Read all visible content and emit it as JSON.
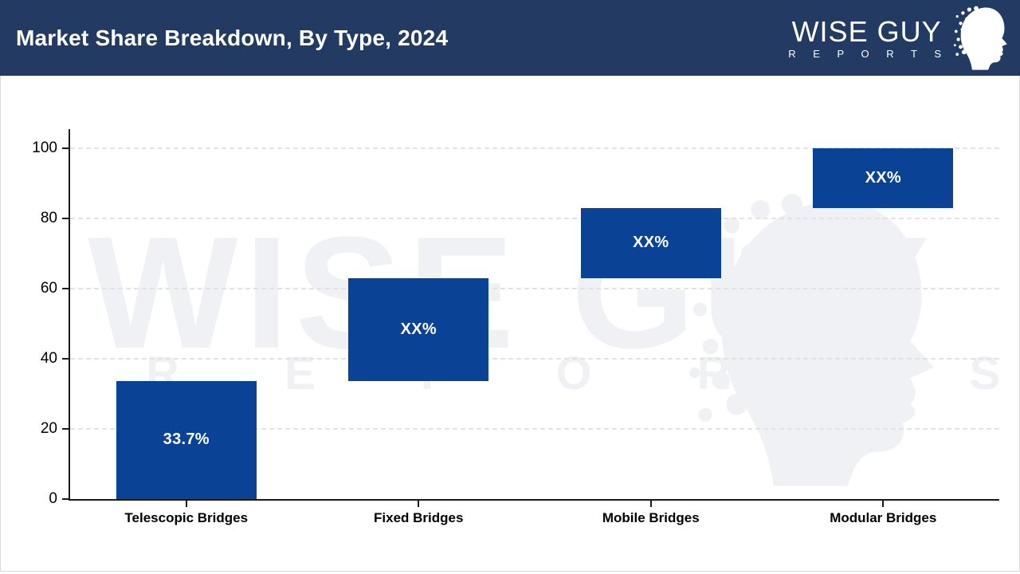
{
  "header": {
    "title": "Market Share Breakdown, By Type, 2024",
    "logo": {
      "line1": "WISE GUY",
      "line2": "R E P O R T S"
    }
  },
  "watermark": {
    "line1": "WISE GUY",
    "line2": "R E P O R T S"
  },
  "chart_data": {
    "type": "bar",
    "subtype": "waterfall",
    "title": "Market Share Breakdown, By Type, 2024",
    "categories": [
      "Telescopic Bridges",
      "Fixed Bridges",
      "Mobile Bridges",
      "Modular Bridges"
    ],
    "series": [
      {
        "name": "Market share (%)",
        "segments": [
          {
            "category": "Telescopic Bridges",
            "start": 0,
            "end": 33.7,
            "label": "33.7%"
          },
          {
            "category": "Fixed Bridges",
            "start": 33.7,
            "end": 63,
            "label": "XX%"
          },
          {
            "category": "Mobile Bridges",
            "start": 63,
            "end": 83,
            "label": "XX%"
          },
          {
            "category": "Modular Bridges",
            "start": 83,
            "end": 100,
            "label": "XX%"
          }
        ]
      }
    ],
    "xlabel": "",
    "ylabel": "",
    "ylim": [
      0,
      100
    ],
    "yticks": [
      0,
      20,
      40,
      60,
      80,
      100
    ],
    "grid": "horizontal-dashed",
    "legend": "none",
    "colors": {
      "bar": "#0a4296",
      "bar_label": "#ffffff",
      "grid": "#e2e2e2",
      "axis": "#1a1a1a",
      "tick_label": "#000000",
      "header_bg": "#233a63",
      "header_text": "#ffffff",
      "watermark": "#f0f1f4",
      "border": "#d9d9d9"
    }
  }
}
